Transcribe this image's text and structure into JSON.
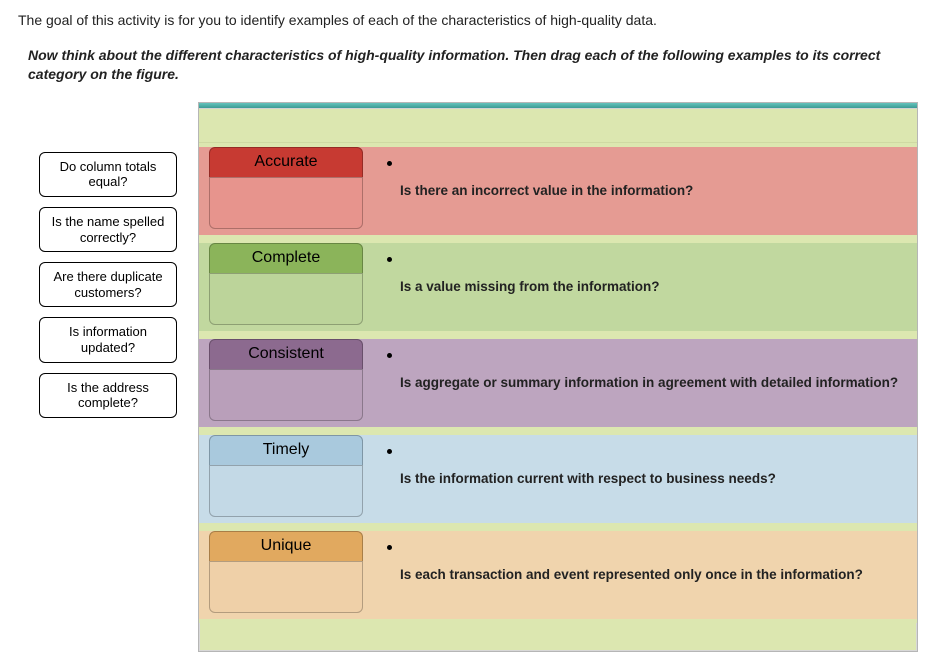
{
  "intro": "The goal of this activity is for you to identify examples of each of the characteristics of high-quality data.",
  "instructions": "Now think about the different characteristics of high-quality information. Then drag each of the following examples to its correct category on the figure.",
  "drag_items": [
    {
      "label": "Do column totals equal?"
    },
    {
      "label": "Is the name spelled correctly?"
    },
    {
      "label": "Are there duplicate customers?"
    },
    {
      "label": "Is information updated?"
    },
    {
      "label": "Is the address complete?"
    }
  ],
  "categories": [
    {
      "name": "Accurate",
      "question": "Is there an incorrect value in the information?",
      "label_top_bg": "#c73a32",
      "label_drop_bg": "#e7948d",
      "row_bg": "#e59b93"
    },
    {
      "name": "Complete",
      "question": "Is a value missing from the information?",
      "label_top_bg": "#8bb45a",
      "label_drop_bg": "#bcd49a",
      "row_bg": "#c1d89f"
    },
    {
      "name": "Consistent",
      "question": "Is aggregate or summary information in agreement with detailed information?",
      "label_top_bg": "#8c6a8f",
      "label_drop_bg": "#b99fba",
      "row_bg": "#bda5bf"
    },
    {
      "name": "Timely",
      "question": "Is the information current with respect to business needs?",
      "label_top_bg": "#a9c9dd",
      "label_drop_bg": "#c3d9e6",
      "row_bg": "#c7dce8"
    },
    {
      "name": "Unique",
      "question": "Is each transaction and event represented only once in the information?",
      "label_top_bg": "#e1a95f",
      "label_drop_bg": "#efd0a8",
      "row_bg": "#f0d4ad"
    }
  ],
  "board_bg": "#dce7b0"
}
